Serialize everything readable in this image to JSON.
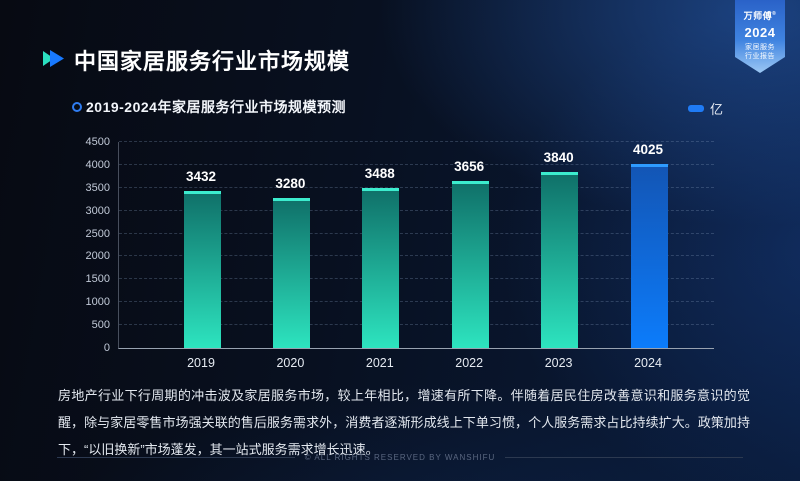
{
  "slide": {
    "title": "中国家居服务行业市场规模",
    "paragraph": "房地产行业下行周期的冲击波及家居服务市场，较上年相比，增速有所下降。伴随着居民住房改善意识和服务意识的觉醒，除与家居零售市场强关联的售后服务需求外，消费者逐渐形成线上下单习惯，个人服务需求占比持续扩大。政策加持下，“以旧换新”市场蓬发，其一站式服务需求增长迅速。",
    "footer_text": "© ALL RIGHTS RESERVED BY WANSHIFU"
  },
  "badge": {
    "brand": "万师傅",
    "reg_mark": "®",
    "year": "2024",
    "line1": "家居服务",
    "line2": "行业报告"
  },
  "chart": {
    "subtitle": "2019-2024年家居服务行业市场规模预测",
    "legend_label": "亿"
  },
  "chart_data": {
    "type": "bar",
    "title": "2019-2024年家居服务行业市场规模预测",
    "categories": [
      "2019",
      "2020",
      "2021",
      "2022",
      "2023",
      "2024"
    ],
    "values": [
      3432,
      3280,
      3488,
      3656,
      3840,
      4025
    ],
    "unit": "亿",
    "ylim": [
      0,
      4500
    ],
    "ytick_step": 500,
    "grid": true,
    "grid_style": "dashed",
    "legend_position": "top-right",
    "highlight_index": 5,
    "colors": {
      "teal_top": "#0f6f68",
      "teal_bottom": "#2de4bf",
      "teal_cap": "#3cecce",
      "blue_top": "#1355b4",
      "blue_bottom": "#0c7cfb",
      "blue_cap": "#2e9bff",
      "legend_swatch": "#1f7bf5",
      "accent_teal": "#2be0c0",
      "accent_blue": "#1879ff"
    }
  }
}
